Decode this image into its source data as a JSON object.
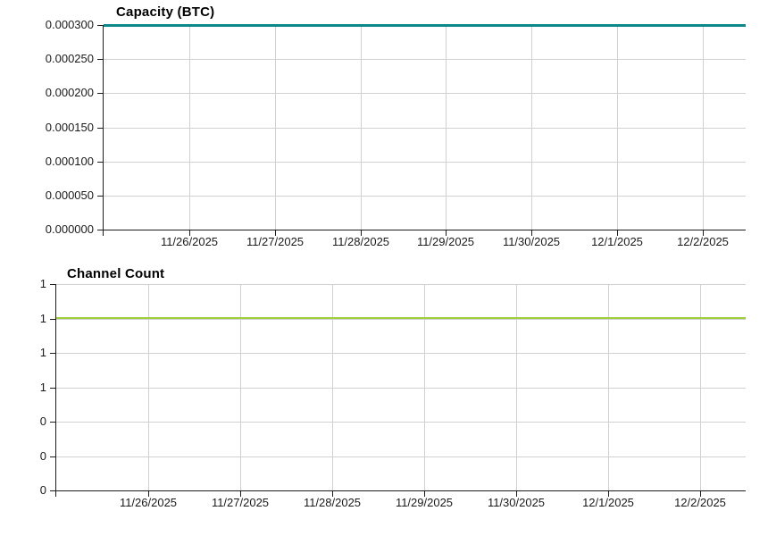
{
  "page": {
    "background": "#ffffff"
  },
  "theme": {
    "grid_color": "#d0d0d0",
    "axis_color": "#1c1c1c",
    "label_color": "#1a1a1a",
    "title_color": "#000000"
  },
  "chart_data": [
    {
      "type": "line",
      "title": "Capacity (BTC)",
      "x": [
        "11/26/2025",
        "11/27/2025",
        "11/28/2025",
        "11/29/2025",
        "11/30/2025",
        "12/1/2025",
        "12/2/2025"
      ],
      "series": [
        {
          "name": "Capacity (BTC)",
          "values": [
            0.0003,
            0.0003,
            0.0003,
            0.0003,
            0.0003,
            0.0003,
            0.0003
          ],
          "color": "#0d8889",
          "thickness_px": 3
        }
      ],
      "ylim": [
        0,
        0.0003
      ],
      "y_tick_labels": [
        "0.000300",
        "0.000250",
        "0.000200",
        "0.000150",
        "0.000100",
        "0.000050",
        "0.000000"
      ],
      "x_tick_labels": [
        "11/26/2025",
        "11/27/2025",
        "11/28/2025",
        "11/29/2025",
        "11/30/2025",
        "12/1/2025",
        "12/2/2025"
      ],
      "grid": true,
      "legend": "none"
    },
    {
      "type": "line",
      "title": "Channel Count",
      "x": [
        "11/26/2025",
        "11/27/2025",
        "11/28/2025",
        "11/29/2025",
        "11/30/2025",
        "12/1/2025",
        "12/2/2025"
      ],
      "series": [
        {
          "name": "Channel Count",
          "values": [
            1,
            1,
            1,
            1,
            1,
            1,
            1
          ],
          "color": "#9fce3d",
          "thickness_px": 2
        }
      ],
      "ylim": [
        0,
        1.2
      ],
      "y_tick_labels": [
        "1",
        "1",
        "1",
        "1",
        "0",
        "0",
        "0"
      ],
      "x_tick_labels": [
        "11/26/2025",
        "11/27/2025",
        "11/28/2025",
        "11/29/2025",
        "11/30/2025",
        "12/1/2025",
        "12/2/2025"
      ],
      "grid": true,
      "legend": "none"
    }
  ]
}
